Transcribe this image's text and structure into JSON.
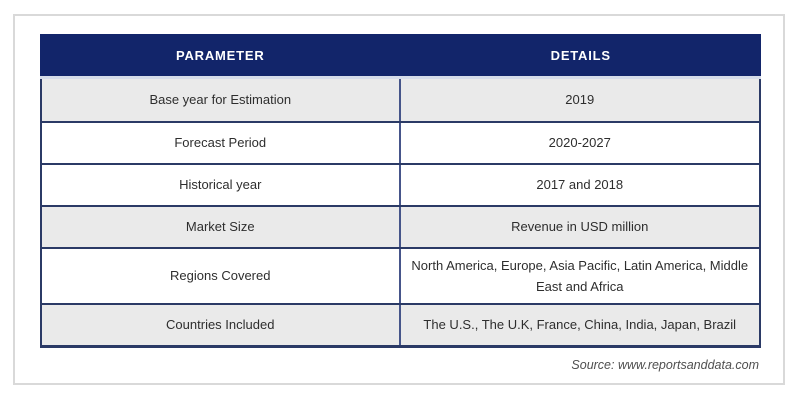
{
  "table": {
    "header": {
      "parameter": "PARAMETER",
      "details": "DETAILS"
    },
    "rows": [
      {
        "parameter": "Base year for Estimation",
        "details": "2019"
      },
      {
        "parameter": "Forecast Period",
        "details": "2020-2027"
      },
      {
        "parameter": "Historical year",
        "details": "2017 and 2018"
      },
      {
        "parameter": "Market Size",
        "details": "Revenue in USD million"
      },
      {
        "parameter": "Regions Covered",
        "details": "North America, Europe, Asia Pacific, Latin America, Middle East and Africa"
      },
      {
        "parameter": "Countries Included",
        "details": "The U.S., The  U.K, France, China, India, Japan, Brazil"
      }
    ]
  },
  "source": {
    "label": "Source: www.reportsanddata.com"
  },
  "colors": {
    "header_bg": "#12256A",
    "row_alt_bg": "#EAEAEA",
    "border_dark": "#2B3A66",
    "divider": "#46558A",
    "card_border": "#D9D9D9",
    "cell_text": "#2E2E2E",
    "source_text": "#4F4F4F"
  }
}
